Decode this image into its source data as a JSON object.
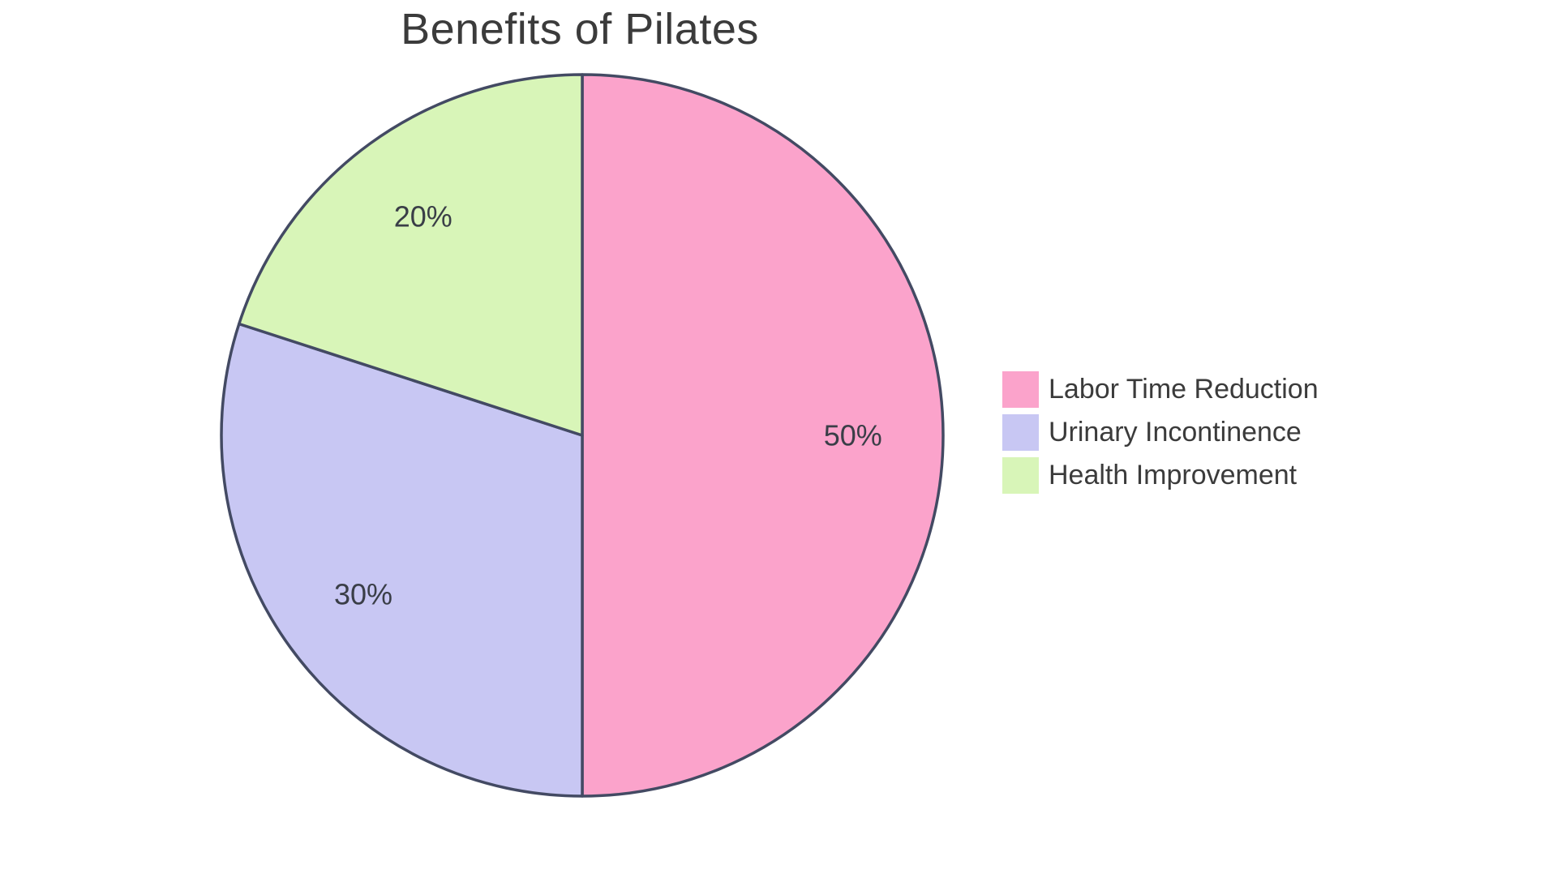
{
  "title": "Benefits of Pilates",
  "chart_data": {
    "type": "pie",
    "title": "Benefits of Pilates",
    "categories": [
      "Labor Time Reduction",
      "Urinary Incontinence",
      "Health Improvement"
    ],
    "values": [
      50,
      30,
      20
    ],
    "unit": "percent",
    "slice_labels": [
      "50%",
      "30%",
      "20%"
    ],
    "colors": [
      "#FBA3CB",
      "#C8C7F3",
      "#D8F5B8"
    ],
    "stroke_color": "#434A63",
    "label_color": "#3A3E47",
    "start_angle_deg": 0,
    "direction": "clockwise",
    "legend_position": "right",
    "grid": false
  },
  "legend": {
    "items": [
      {
        "label": "Labor Time Reduction",
        "color": "#FBA3CB"
      },
      {
        "label": "Urinary Incontinence",
        "color": "#C8C7F3"
      },
      {
        "label": "Health Improvement",
        "color": "#D8F5B8"
      }
    ]
  }
}
